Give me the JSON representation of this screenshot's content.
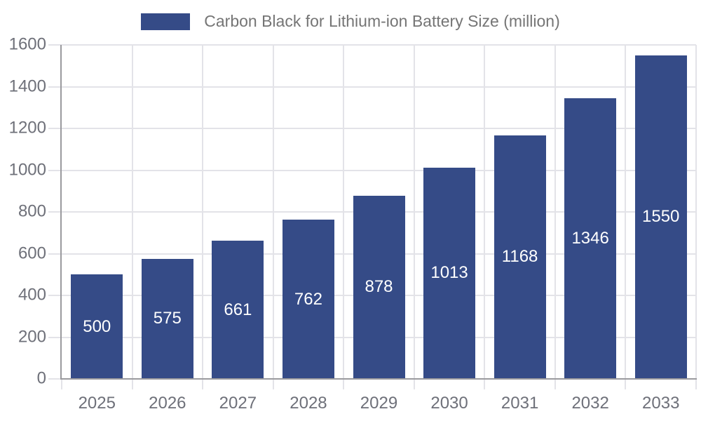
{
  "chart_data": {
    "type": "bar",
    "legend": [
      {
        "label": "Carbon Black for Lithium-ion Battery Size (million)"
      }
    ],
    "legend_position": "top-center",
    "categories": [
      "2025",
      "2026",
      "2027",
      "2028",
      "2029",
      "2030",
      "2031",
      "2032",
      "2033"
    ],
    "values": [
      500,
      575,
      661,
      762,
      878,
      1013,
      1168,
      1346,
      1550
    ],
    "value_labels_position": "inside-middle",
    "xlabel": "",
    "ylabel": "",
    "ylim": [
      0,
      1600
    ],
    "yticks": [
      0,
      200,
      400,
      600,
      800,
      1000,
      1200,
      1400,
      1600
    ],
    "grid": true,
    "colors": {
      "bar": "#354B87",
      "value_label": "#FFFFFF",
      "grid": "#E3E3E8",
      "axis": "#9A9A9E",
      "tick_label": "#6E7079",
      "legend_text": "#757575",
      "background": "#FFFFFF"
    }
  }
}
